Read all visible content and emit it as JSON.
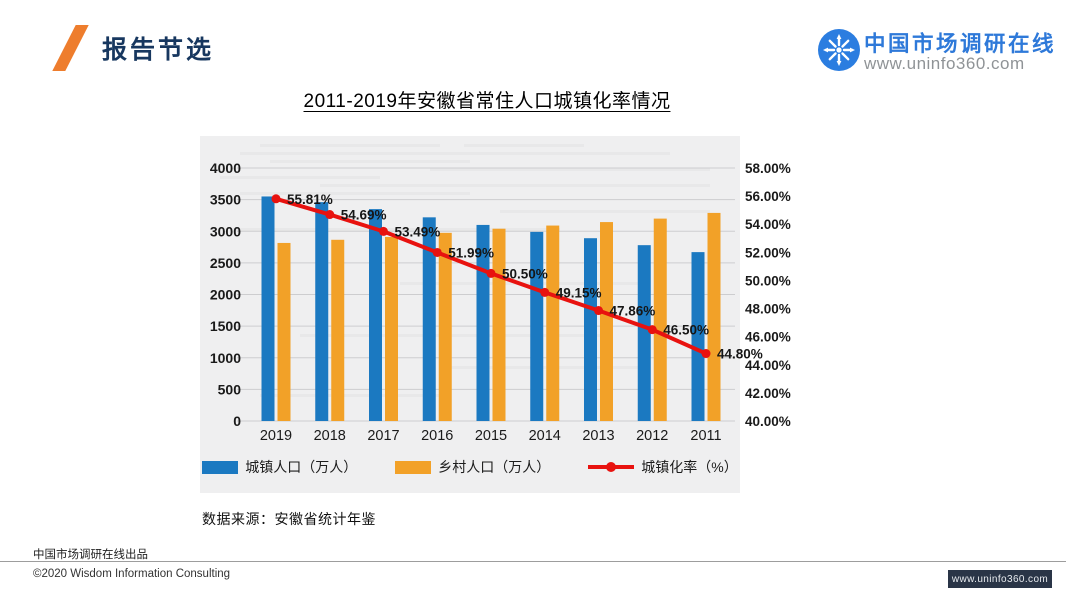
{
  "header": {
    "title": "报告节选"
  },
  "logo": {
    "name": "中国市场调研在线",
    "url": "www.uninfo360.com",
    "icon": "snowflake-compass-icon",
    "brand_color": "#2b7de0"
  },
  "chart_title": "2011-2019年安徽省常住人口城镇化率情况",
  "source_note": "数据来源：安徽省统计年鉴",
  "footer": {
    "produced_by": "中国市场调研在线出品",
    "copyright": "©2020 Wisdom Information Consulting",
    "badge_url": "www.uninfo360.com"
  },
  "colors": {
    "urban_bar": "#1b79c1",
    "rural_bar": "#f2a128",
    "rate_line": "#e8120f",
    "grid": "#cdcdcf",
    "axis_text": "#1a1a1a",
    "plot_bg": "#efeff0",
    "accent_slash": "#ee7d2d",
    "header_text": "#17375f"
  },
  "chart_data": {
    "type": "bar",
    "subtype": "grouped-bars-with-line",
    "title": "2011-2019年安徽省常住人口城镇化率情况",
    "categories": [
      "2019",
      "2018",
      "2017",
      "2016",
      "2015",
      "2014",
      "2013",
      "2012",
      "2011"
    ],
    "series": [
      {
        "name": "城镇人口（万人）",
        "kind": "bar",
        "axis": "left",
        "color": "#1b79c1",
        "values": [
          3550,
          3460,
          3350,
          3220,
          3100,
          2990,
          2890,
          2780,
          2670
        ]
      },
      {
        "name": "乡村人口（万人）",
        "kind": "bar",
        "axis": "left",
        "color": "#f2a128",
        "values": [
          2815,
          2865,
          2910,
          2975,
          3040,
          3090,
          3145,
          3200,
          3290
        ]
      },
      {
        "name": "城镇化率（%）",
        "kind": "line",
        "axis": "right",
        "color": "#e8120f",
        "values": [
          55.81,
          54.69,
          53.49,
          51.99,
          50.5,
          49.15,
          47.86,
          46.5,
          44.8
        ],
        "labels": [
          "55.81%",
          "54.69%",
          "53.49%",
          "51.99%",
          "50.50%",
          "49.15%",
          "47.86%",
          "46.50%",
          "44.80%"
        ]
      }
    ],
    "left_axis": {
      "min": 0,
      "max": 4000,
      "step": 500,
      "labels": [
        "0",
        "500",
        "1000",
        "1500",
        "2000",
        "2500",
        "3000",
        "3500",
        "4000"
      ]
    },
    "right_axis": {
      "min": 40,
      "max": 58,
      "step": 2,
      "labels": [
        "40.00%",
        "42.00%",
        "44.00%",
        "46.00%",
        "48.00%",
        "50.00%",
        "52.00%",
        "54.00%",
        "56.00%",
        "58.00%"
      ]
    },
    "grid": true,
    "legend_position": "bottom"
  }
}
